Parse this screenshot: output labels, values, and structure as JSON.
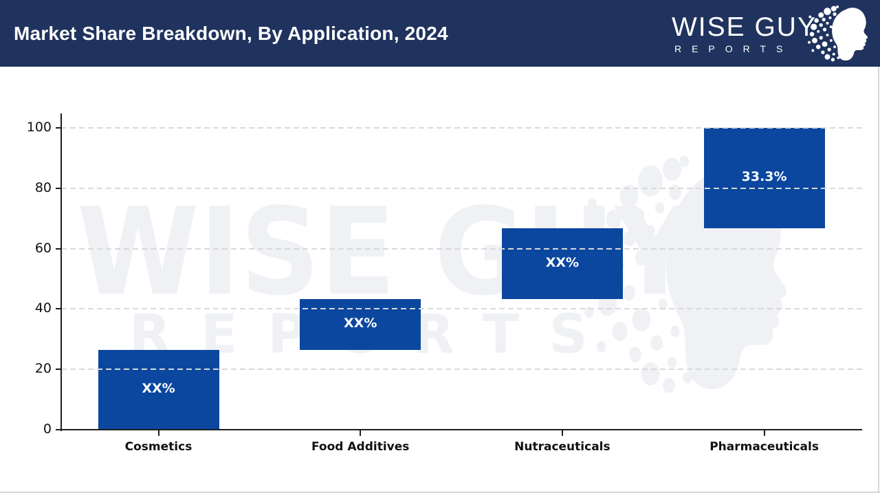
{
  "header": {
    "title": "Market Share Breakdown, By Application, 2024",
    "logo": {
      "line1": "WISE GUY",
      "line2": "REPORTS",
      "icon": "dotted-head-profile"
    }
  },
  "watermark": {
    "line1": "WISE GUY",
    "line2": "REPORTS"
  },
  "chart_data": {
    "type": "bar",
    "subtype": "stacked-waterfall-percent",
    "title": "Market Share Breakdown, By Application, 2024",
    "categories": [
      "Cosmetics",
      "Food Additives",
      "Nutraceuticals",
      "Pharmaceuticals"
    ],
    "segments": [
      {
        "category": "Cosmetics",
        "from": 0,
        "to": 26.4,
        "label": "XX%"
      },
      {
        "category": "Food Additives",
        "from": 26.4,
        "to": 43.2,
        "label": "XX%"
      },
      {
        "category": "Nutraceuticals",
        "from": 43.2,
        "to": 66.7,
        "label": "XX%"
      },
      {
        "category": "Pharmaceuticals",
        "from": 66.7,
        "to": 100,
        "label": "33.3%"
      }
    ],
    "xlabel": "",
    "ylabel": "",
    "yticks": [
      0,
      20,
      40,
      60,
      80,
      100
    ],
    "ylim": [
      0,
      105
    ],
    "grid": "horizontal-dashed",
    "legend": "none"
  },
  "colors": {
    "header_bg": "#20335e",
    "bar": "#0b479f",
    "grid": "#d9d9d9",
    "axis": "#1c1c1c",
    "watermark": "#f0f1f4",
    "border": "#d6d6d6"
  }
}
